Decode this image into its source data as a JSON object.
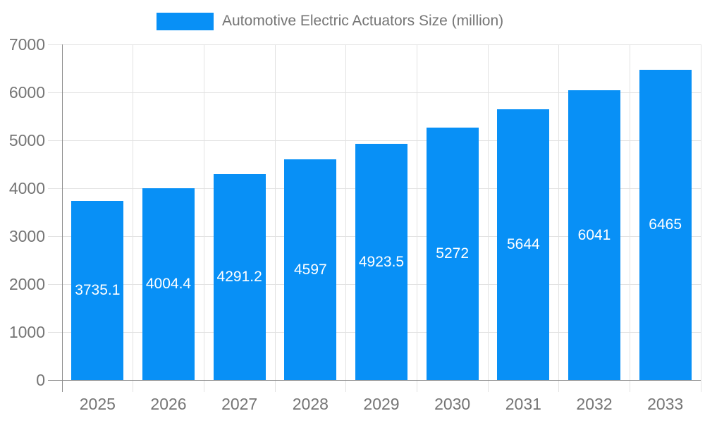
{
  "chart_data": {
    "type": "bar",
    "title": "Automotive Electric Actuators Size (million)",
    "categories": [
      "2025",
      "2026",
      "2027",
      "2028",
      "2029",
      "2030",
      "2031",
      "2032",
      "2033"
    ],
    "values": [
      3735.1,
      4004.4,
      4291.2,
      4597,
      4923.5,
      5272,
      5644,
      6041,
      6465
    ],
    "value_labels": [
      "3735.1",
      "4004.4",
      "4291.2",
      "4597",
      "4923.5",
      "5272",
      "5644",
      "6041",
      "6465"
    ],
    "xlabel": "",
    "ylabel": "",
    "yticks": [
      0,
      1000,
      2000,
      3000,
      4000,
      5000,
      6000,
      7000
    ],
    "ylim": [
      0,
      7000
    ],
    "grid": true,
    "legend_position": "top",
    "colors": {
      "bar": "#0890F6",
      "bar_value_text": "#ffffff",
      "axis_text": "#757575",
      "legend_text": "#757575",
      "gridline": "#e2e2e2",
      "axis_line": "#8c8c8c",
      "background": "#ffffff"
    }
  }
}
